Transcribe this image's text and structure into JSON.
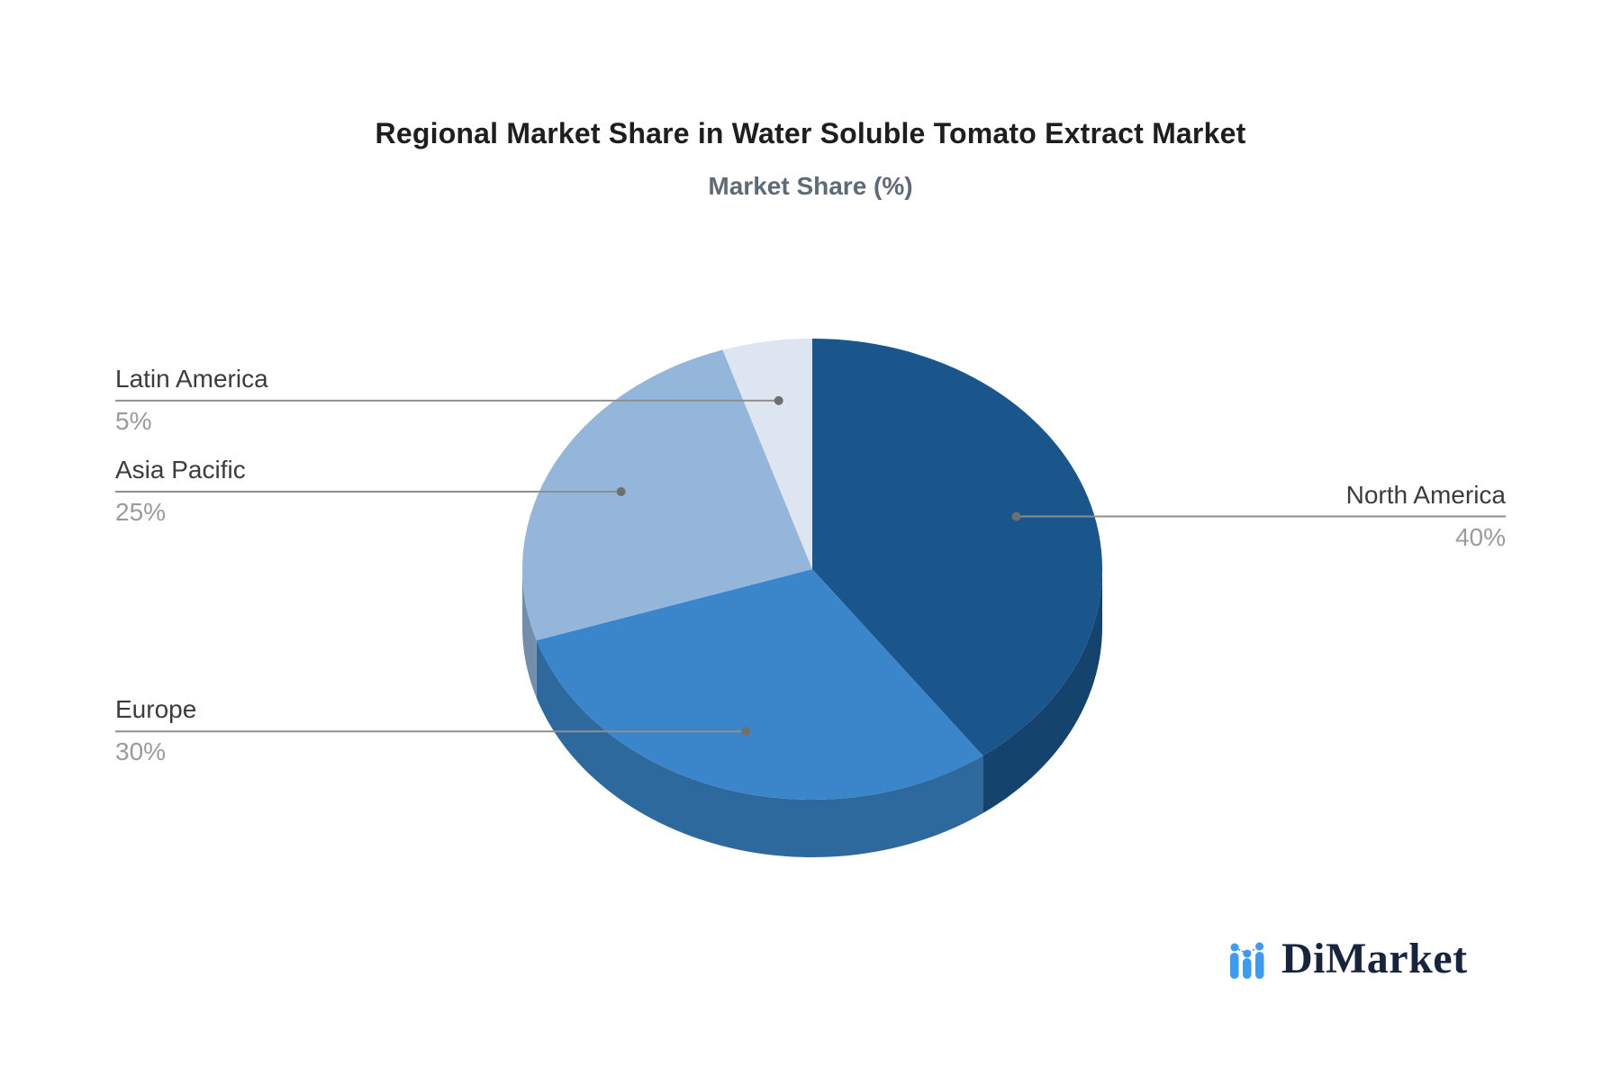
{
  "header": {
    "title": "Regional Market Share in Water Soluble Tomato Extract Market",
    "subtitle": "Market Share (%)",
    "title_color": "#1E1E1E",
    "subtitle_color": "#5E6B77"
  },
  "chart_data": {
    "type": "pie",
    "style": "3d",
    "title": "Regional Market Share in Water Soluble Tomato Extract Market",
    "subtitle": "Market Share (%)",
    "unit": "%",
    "rotation": "clockwise-from-12-oclock",
    "labels": [
      "North America",
      "Europe",
      "Asia Pacific",
      "Latin America"
    ],
    "values": [
      40,
      30,
      25,
      5
    ],
    "display_values": [
      "40%",
      "30%",
      "25%",
      "5%"
    ],
    "colors": [
      "#1A568C",
      "#3B86CA",
      "#93B6DA",
      "#DDE5F0"
    ],
    "legend_position": "callout",
    "annotation_label_color": "#3C3C3C",
    "annotation_value_color": "#9B9B9B",
    "leader_line_color": "#8F8F8F",
    "leader_dot_color": "#6F6F6F"
  },
  "branding": {
    "logo_text": "DiMarket",
    "logo_text_color": "#16243D",
    "logo_icon_color": "#3D9BF3"
  }
}
